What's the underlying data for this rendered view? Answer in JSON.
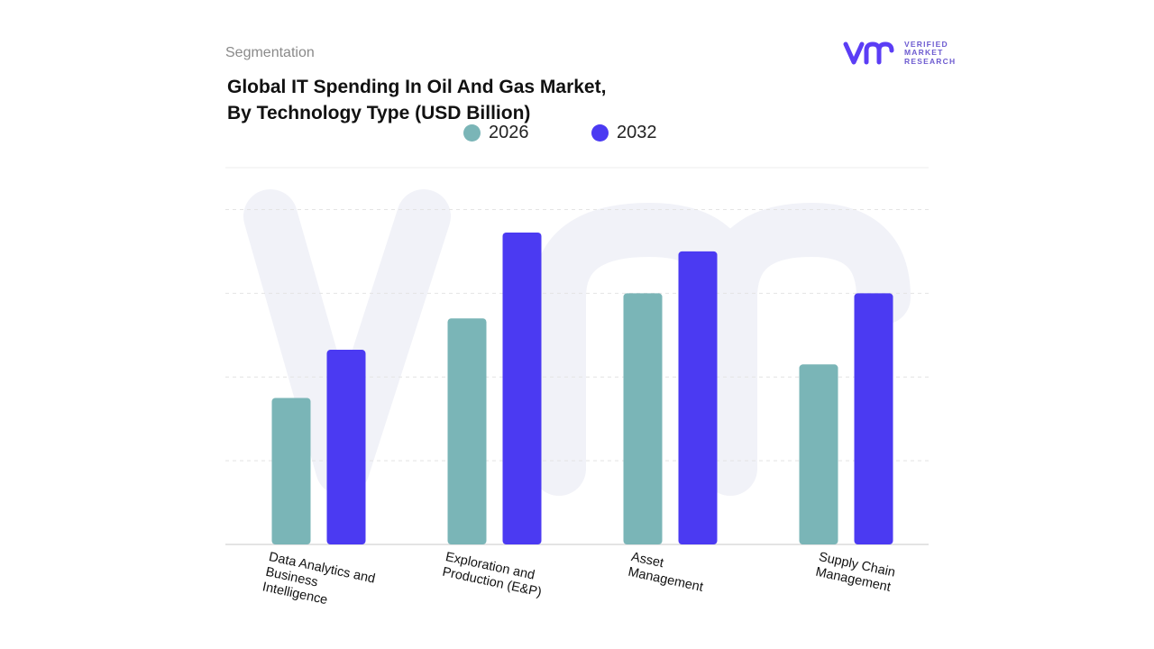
{
  "header": {
    "segment_label": "Segmentation",
    "title_line1": "Global IT Spending In Oil And Gas Market,",
    "title_line2": "By Technology Type (USD Billion)"
  },
  "logo": {
    "line1": "VERIFIED",
    "line2": "MARKET",
    "line3": "RESEARCH",
    "brand_color": "#5b3df5"
  },
  "chart_data": {
    "type": "bar",
    "title": "Global IT Spending In Oil And Gas Market, By Technology Type (USD Billion)",
    "categories": [
      "Data Analytics and Business Intelligence",
      "Exploration and Production (E&P)",
      "Asset Management",
      "Supply Chain Management"
    ],
    "category_label_lines": [
      [
        "Data Analytics and",
        "Business",
        "Intelligence"
      ],
      [
        "Exploration and",
        "Production (E&P)"
      ],
      [
        "Asset",
        "Management"
      ],
      [
        "Supply Chain",
        "Management"
      ]
    ],
    "series": [
      {
        "name": "2026",
        "color": "#7ab5b7",
        "values": [
          35,
          54,
          60,
          43
        ]
      },
      {
        "name": "2032",
        "color": "#4b3af2",
        "values": [
          46.5,
          74.5,
          70,
          60
        ]
      }
    ],
    "ylim": [
      0,
      90
    ],
    "grid": true,
    "legend_position": "top-center",
    "xlabel": "",
    "ylabel": ""
  }
}
